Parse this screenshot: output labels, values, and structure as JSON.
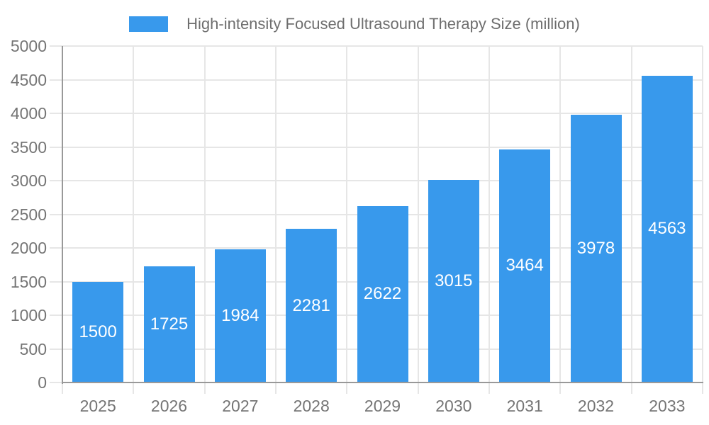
{
  "chart_data": {
    "type": "bar",
    "title": "High-intensity Focused Ultrasound Therapy Size (million)",
    "legend": [
      "High-intensity Focused Ultrasound Therapy Size (million)"
    ],
    "legend_position": "top-center",
    "categories": [
      "2025",
      "2026",
      "2027",
      "2028",
      "2029",
      "2030",
      "2031",
      "2032",
      "2033"
    ],
    "values": [
      1500,
      1725,
      1984,
      2281,
      2622,
      3015,
      3464,
      3978,
      4563
    ],
    "xlabel": "",
    "ylabel": "",
    "ylim": [
      0,
      5000
    ],
    "ytick_step": 500,
    "yticks": [
      0,
      500,
      1000,
      1500,
      2000,
      2500,
      3000,
      3500,
      4000,
      4500,
      5000
    ],
    "grid": true,
    "value_labels": "inside-center",
    "colors": {
      "bar": "#3899EC",
      "value_label": "#FFFFFF",
      "grid": "#E6E6E6",
      "axis": "#999999",
      "tick_label": "#757575",
      "legend_text": "#6E6E6E",
      "background": "#FFFFFF"
    }
  }
}
